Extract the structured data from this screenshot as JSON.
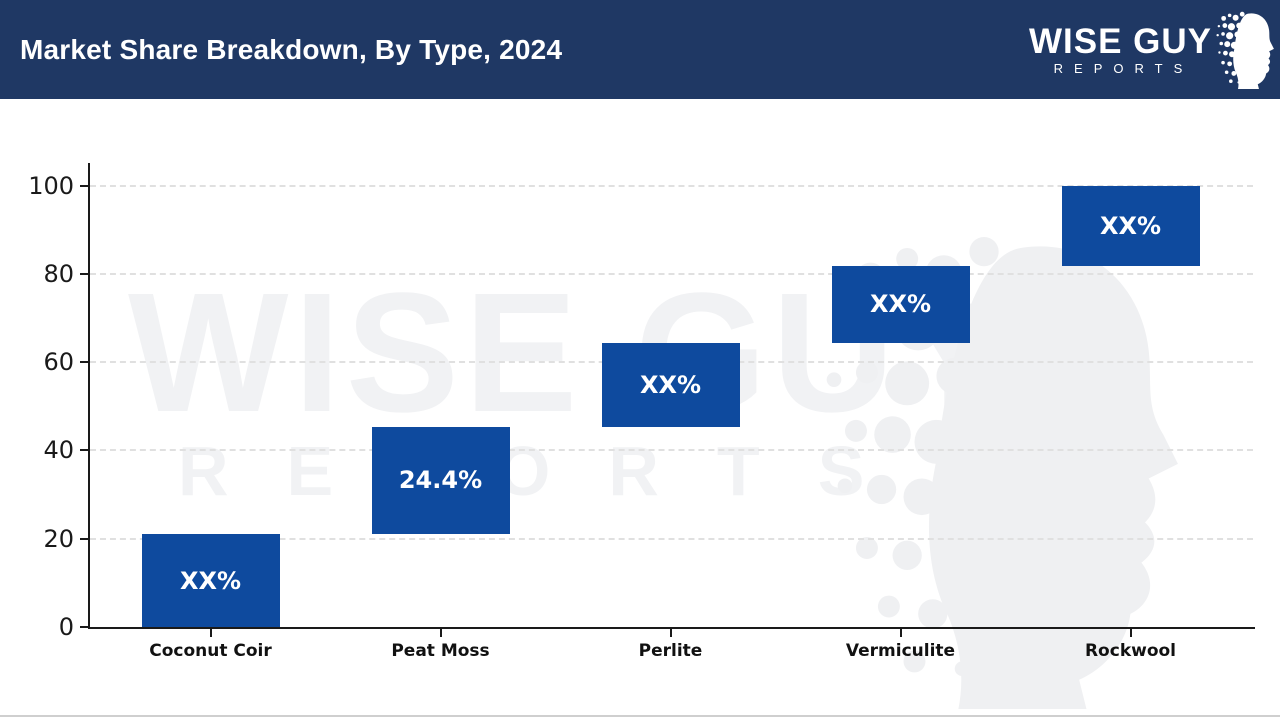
{
  "header": {
    "title": "Market Share Breakdown, By Type, 2024",
    "bg_color": "#1f3864"
  },
  "brand": {
    "name": "WISE GUY",
    "sub": "REPORTS"
  },
  "chart_data": {
    "type": "bar",
    "subtype": "waterfall",
    "title": "Market Share Breakdown, By Type, 2024",
    "categories": [
      "Coconut Coir",
      "Peat Moss",
      "Perlite",
      "Vermiculite",
      "Rockwool"
    ],
    "segments": [
      {
        "category": "Coconut Coir",
        "start": 0,
        "end": 21,
        "label": "XX%",
        "masked": true
      },
      {
        "category": "Peat Moss",
        "start": 21,
        "end": 45.4,
        "label": "24.4%",
        "masked": false,
        "value": 24.4
      },
      {
        "category": "Perlite",
        "start": 45.4,
        "end": 64.4,
        "label": "XX%",
        "masked": true
      },
      {
        "category": "Vermiculite",
        "start": 64.4,
        "end": 81.8,
        "label": "XX%",
        "masked": true
      },
      {
        "category": "Rockwool",
        "start": 81.8,
        "end": 100,
        "label": "XX%",
        "masked": true
      }
    ],
    "xlabel": "",
    "ylabel": "",
    "y_ticks": [
      0,
      20,
      40,
      60,
      80,
      100
    ],
    "ylim": [
      0,
      105
    ],
    "bar_color": "#0e4a9e",
    "bar_label_color": "#ffffff",
    "grid": {
      "horizontal": true,
      "style": "dashed",
      "color": "#e0e0e0"
    },
    "legend": "none"
  }
}
